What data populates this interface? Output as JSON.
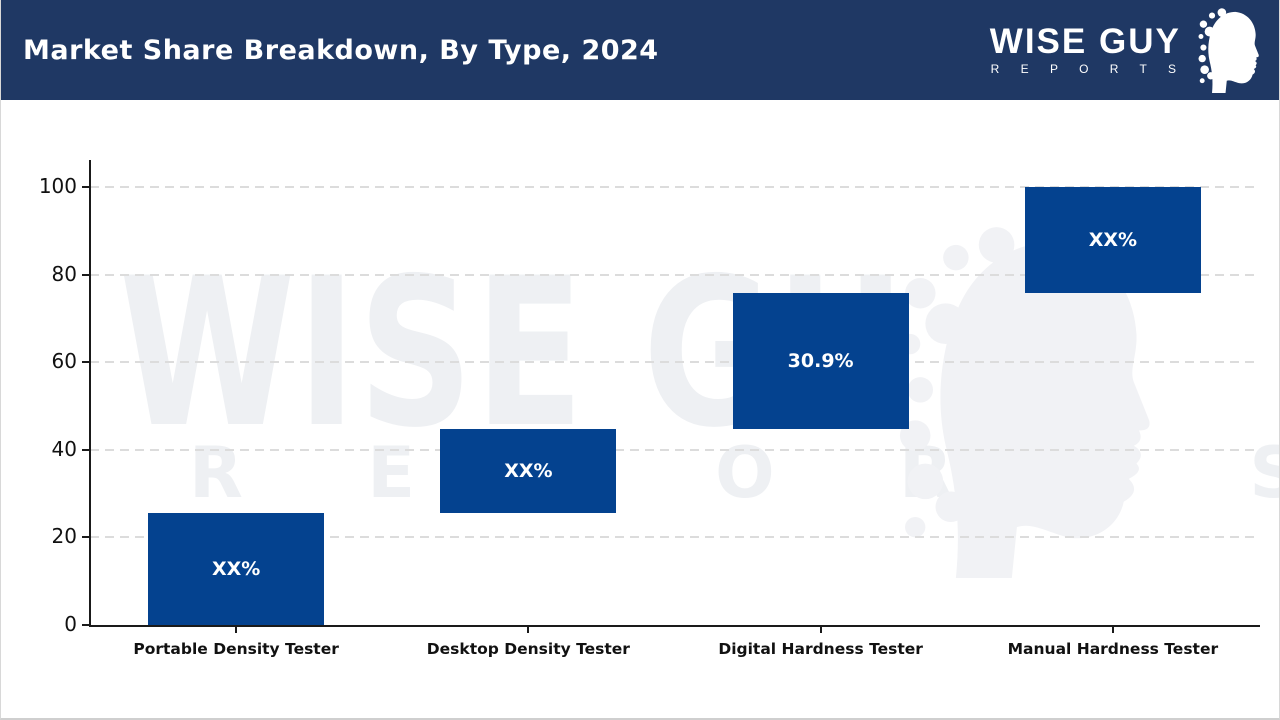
{
  "header": {
    "title": "Market Share Breakdown, By Type, 2024",
    "bg_color": "#1f3864",
    "logo": {
      "brand": "WISE GUY",
      "sub": "R E P O R T S"
    }
  },
  "watermark": {
    "line1": "WISE GU",
    "line2": "R E P O R T S"
  },
  "chart_data": {
    "type": "bar",
    "subtype": "floating-waterfall-segments",
    "title": "Market Share Breakdown, By Type, 2024",
    "xlabel": "",
    "ylabel": "",
    "ylim": [
      0,
      100
    ],
    "yticks": [
      0,
      20,
      40,
      60,
      80,
      100
    ],
    "grid": "horizontal-dashed",
    "legend": "none",
    "bar_color": "#04428f",
    "label_color": "#ffffff",
    "categories": [
      "Portable Density Tester",
      "Desktop Density Tester",
      "Digital Hardness Tester",
      "Manual Hardness Tester"
    ],
    "segments": [
      {
        "category": "Portable Density Tester",
        "label": "XX%",
        "start": 0,
        "end": 25.6
      },
      {
        "category": "Desktop Density Tester",
        "label": "XX%",
        "start": 25.6,
        "end": 44.8
      },
      {
        "category": "Digital Hardness Tester",
        "label": "30.9%",
        "start": 44.8,
        "end": 75.7
      },
      {
        "category": "Manual Hardness Tester",
        "label": "XX%",
        "start": 75.7,
        "end": 100
      }
    ]
  }
}
